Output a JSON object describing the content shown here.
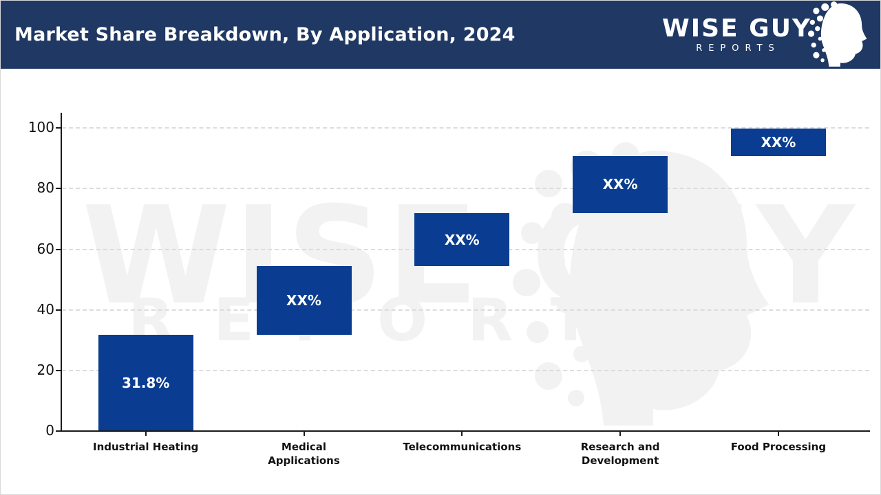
{
  "header": {
    "title": "Market Share Breakdown, By Application, 2024",
    "logo_line1": "WISE GUY",
    "logo_line2": "REPORTS"
  },
  "watermark": {
    "line1": "WISE GUY",
    "line2": "REPORTS"
  },
  "colors": {
    "header_bg": "#1f3864",
    "bar": "#0a3d91",
    "bar_label": "#ffffff",
    "gridline": "#dcdcdc",
    "axis": "#1a1a1a"
  },
  "chart_data": {
    "type": "bar",
    "variant": "waterfall",
    "title": "Market Share Breakdown, By Application, 2024",
    "categories": [
      "Industrial Heating",
      "Medical\nApplications",
      "Telecommunications",
      "Research and\nDevelopment",
      "Food Processing"
    ],
    "segments": [
      {
        "category": "Industrial Heating",
        "start": 0,
        "end": 31.8,
        "value": 31.8,
        "label": "31.8%"
      },
      {
        "category": "Medical Applications",
        "start": 31.8,
        "end": 54.4,
        "value": 22.6,
        "label": "XX%"
      },
      {
        "category": "Telecommunications",
        "start": 54.4,
        "end": 71.9,
        "value": 17.5,
        "label": "XX%"
      },
      {
        "category": "Research and Development",
        "start": 71.9,
        "end": 90.8,
        "value": 18.9,
        "label": "XX%"
      },
      {
        "category": "Food Processing",
        "start": 90.8,
        "end": 99.8,
        "value": 9.0,
        "label": "XX%"
      }
    ],
    "xlabel": "",
    "ylabel": "",
    "yticks": [
      0,
      20,
      40,
      60,
      80,
      100
    ],
    "ylim": [
      0,
      105
    ],
    "grid": "horizontal-dashed",
    "legend": "none"
  }
}
